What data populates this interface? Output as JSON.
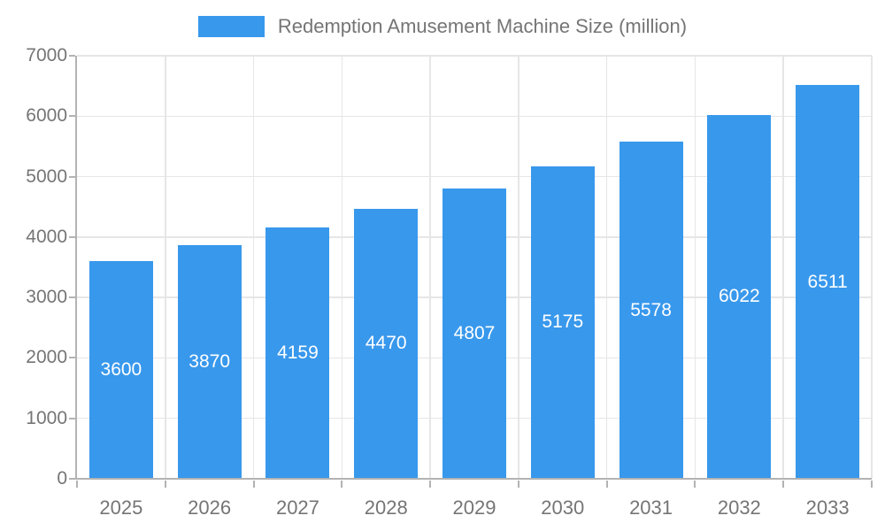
{
  "chart_data": {
    "type": "bar",
    "title": "Redemption Amusement Machine Size (million)",
    "legend_position": "top",
    "categories": [
      "2025",
      "2026",
      "2027",
      "2028",
      "2029",
      "2030",
      "2031",
      "2032",
      "2033"
    ],
    "series": [
      {
        "name": "Redemption Amusement Machine Size (million)",
        "values": [
          3600,
          3870,
          4159,
          4470,
          4807,
          5175,
          5578,
          6022,
          6511
        ]
      }
    ],
    "xlabel": "",
    "ylabel": "",
    "ylim": [
      0,
      7000
    ],
    "yticks": [
      0,
      1000,
      2000,
      3000,
      4000,
      5000,
      6000,
      7000
    ],
    "grid": true,
    "value_labels": "inside-bar-center",
    "colors": {
      "bar": "#3898EC",
      "value_label": "#FFFFFF",
      "axis_text": "#757575",
      "gridline": "#E6E6E6",
      "axis_line": "#B3B3B3",
      "background": "#FFFFFF"
    }
  }
}
